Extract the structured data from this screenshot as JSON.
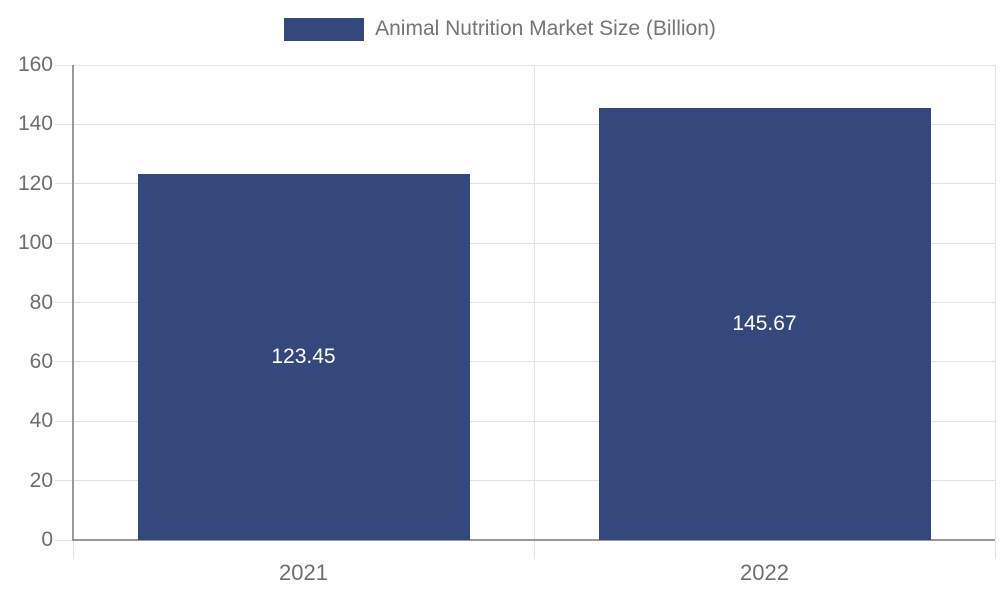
{
  "chart_data": {
    "type": "bar",
    "title": "",
    "legend": "Animal Nutrition Market Size (Billion)",
    "legend_position": "top-center",
    "categories": [
      "2021",
      "2022"
    ],
    "series": [
      {
        "name": "Animal Nutrition Market Size (Billion)",
        "values": [
          123.45,
          145.67
        ]
      }
    ],
    "value_labels": [
      "123.45",
      "145.67"
    ],
    "xlabel": "",
    "ylabel": "",
    "ylim": [
      0,
      160
    ],
    "ytick_step": 20,
    "grid": true,
    "colors": {
      "bar": "#35487E",
      "grid_line": "#E2E2E2",
      "axis_line": "#999999",
      "tick_label": "#6E6E6E",
      "legend_text": "#757575",
      "value_label": "#FFFFFF",
      "background": "#FFFFFF"
    }
  }
}
